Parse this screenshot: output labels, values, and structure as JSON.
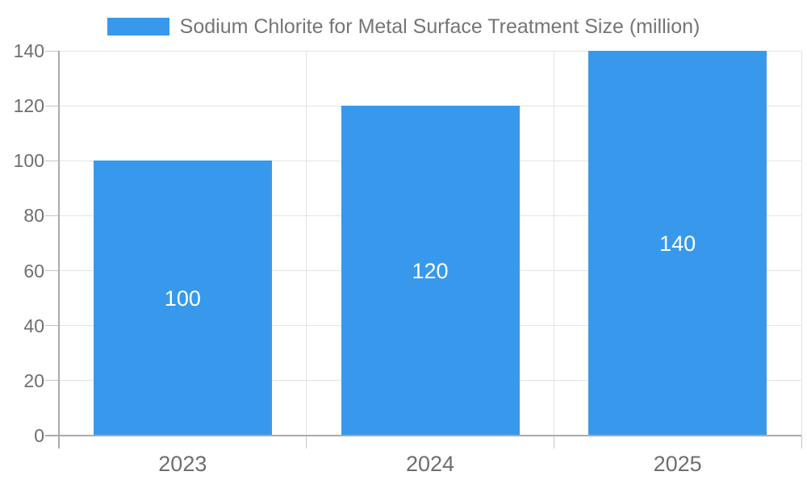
{
  "legend": {
    "series_label": "Sodium Chlorite for Metal Surface Treatment Size (million)"
  },
  "chart_data": {
    "type": "bar",
    "title": "",
    "categories": [
      "2023",
      "2024",
      "2025"
    ],
    "series": [
      {
        "name": "Sodium Chlorite for Metal Surface Treatment Size (million)",
        "values": [
          100,
          120,
          140
        ]
      }
    ],
    "data_labels": [
      "100",
      "120",
      "140"
    ],
    "xlabel": "",
    "ylabel": "",
    "ylim": [
      0,
      140
    ],
    "yticks": [
      0,
      20,
      40,
      60,
      80,
      100,
      120,
      140
    ],
    "legend_position": "top",
    "grid": true,
    "colors": {
      "bar": "#3899EC",
      "grid_line": "#E4E4E4",
      "tick_line": "#C4C4C4",
      "axis_line": "#ABABAB",
      "tick_label": "#6E6E6E",
      "legend_label": "#757575",
      "data_label": "#FFFFFF",
      "background": "#FFFFFF"
    }
  }
}
